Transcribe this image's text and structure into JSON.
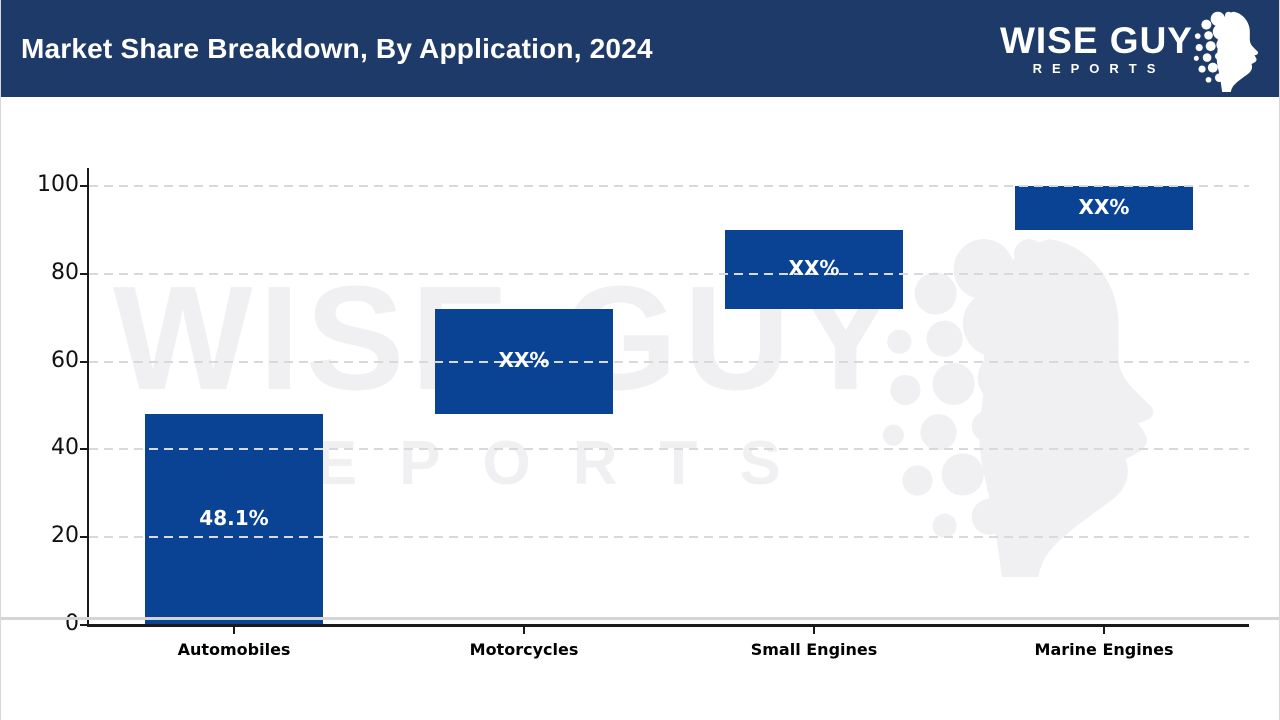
{
  "header": {
    "title": "Market Share Breakdown, By Application, 2024",
    "logo": {
      "name_line": "WISE GUY",
      "sub_line": "REPORTS"
    }
  },
  "watermark": {
    "name_line": "WISE GUY",
    "sub_line": "REPORTS"
  },
  "chart_data": {
    "type": "bar",
    "subtype": "floating-waterfall",
    "title": "Market Share Breakdown, By Application, 2024",
    "categories": [
      "Automobiles",
      "Motorcycles",
      "Small Engines",
      "Marine Engines"
    ],
    "segments": [
      {
        "category": "Automobiles",
        "start": 0,
        "end": 48.1,
        "label": "48.1%"
      },
      {
        "category": "Motorcycles",
        "start": 48.1,
        "end": 72,
        "label": "XX%"
      },
      {
        "category": "Small Engines",
        "start": 72,
        "end": 90,
        "label": "XX%"
      },
      {
        "category": "Marine Engines",
        "start": 90,
        "end": 100,
        "label": "XX%"
      }
    ],
    "xlabel": "",
    "ylabel": "",
    "ylim": [
      0,
      100
    ],
    "yticks": [
      0,
      20,
      40,
      60,
      80,
      100
    ],
    "grid": "horizontal-dashed-above-bars",
    "legend": "none",
    "bar_color": "#0a4294",
    "value_label_color": "#ffffff"
  },
  "colors": {
    "header_bg": "#1e3a68",
    "bar": "#0a4294",
    "gridline": "#d9d9d9",
    "watermark": "#f0f0f2",
    "axis": "#1a1a1a",
    "bottom_rule": "#d4d4d6"
  }
}
